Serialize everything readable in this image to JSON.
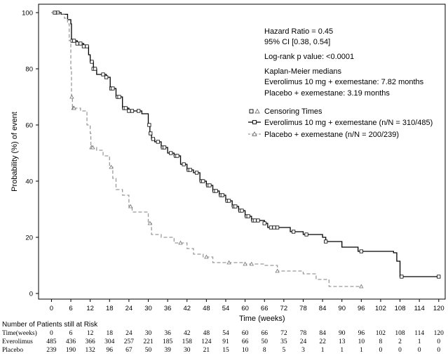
{
  "chart_data": {
    "type": "line",
    "subtype": "kaplan-meier",
    "xlabel": "Time (weeks)",
    "ylabel": "Probability (%) of event",
    "xlim": [
      -4,
      122
    ],
    "ylim": [
      -2,
      103
    ],
    "xticks": [
      0,
      6,
      12,
      18,
      24,
      30,
      36,
      42,
      48,
      54,
      60,
      66,
      72,
      78,
      84,
      90,
      96,
      102,
      108,
      114,
      120
    ],
    "yticks": [
      0,
      20,
      40,
      60,
      80,
      100
    ],
    "grid": false,
    "legend_position": "right-middle",
    "annotations": [
      "Hazard Ratio = 0.45",
      "95% CI [0.38, 0.54]",
      "Log-rank p value: <0.0001",
      "Kaplan-Meier medians",
      "Everolimus 10 mg + exemestane: 7.82 months",
      "Placebo + exemestane: 3.19 months"
    ],
    "legend": {
      "censoring_label": "Censoring Times"
    },
    "series": [
      {
        "name": "Everolimus 10 mg + exemestane (n/N = 310/485)",
        "color": "#000000",
        "style": "solid",
        "marker": "square",
        "points": [
          [
            0,
            100
          ],
          [
            1,
            100
          ],
          [
            3,
            99.4
          ],
          [
            5,
            97.5
          ],
          [
            6,
            96
          ],
          [
            6.2,
            90
          ],
          [
            8,
            89
          ],
          [
            10,
            88
          ],
          [
            11.5,
            85
          ],
          [
            12,
            82.5
          ],
          [
            13,
            80
          ],
          [
            14,
            78
          ],
          [
            17,
            77
          ],
          [
            18.2,
            73
          ],
          [
            20,
            70
          ],
          [
            22,
            66
          ],
          [
            24,
            65
          ],
          [
            28,
            64
          ],
          [
            30,
            60
          ],
          [
            30.5,
            57
          ],
          [
            31,
            55
          ],
          [
            32,
            54
          ],
          [
            34,
            52
          ],
          [
            36,
            50
          ],
          [
            38,
            49
          ],
          [
            40,
            46
          ],
          [
            42,
            44
          ],
          [
            44,
            43
          ],
          [
            46,
            40
          ],
          [
            48,
            38.5
          ],
          [
            50,
            36.5
          ],
          [
            52,
            35
          ],
          [
            54,
            33
          ],
          [
            56,
            31
          ],
          [
            58,
            29.5
          ],
          [
            60,
            27.5
          ],
          [
            62,
            26
          ],
          [
            66,
            25
          ],
          [
            67,
            23.5
          ],
          [
            72,
            23.5
          ],
          [
            74,
            22
          ],
          [
            78,
            21
          ],
          [
            84,
            20
          ],
          [
            85,
            18.5
          ],
          [
            90,
            16.5
          ],
          [
            95,
            15
          ],
          [
            102,
            15
          ],
          [
            106,
            14.5
          ],
          [
            107,
            11.5
          ],
          [
            108,
            6
          ],
          [
            120,
            6
          ]
        ],
        "censored_x": [
          1,
          2,
          6.5,
          7,
          8,
          9,
          10,
          11,
          12.5,
          13,
          13.5,
          16,
          17,
          18.5,
          19,
          20.5,
          21,
          22.5,
          23,
          24,
          25,
          27,
          30.3,
          30.7,
          31.5,
          33,
          34.5,
          35,
          37,
          38.5,
          39,
          41,
          42.5,
          43,
          45,
          46.5,
          47,
          48.5,
          49,
          50.5,
          51,
          52.5,
          53,
          54.5,
          55,
          56.5,
          57,
          58.5,
          59,
          60.5,
          61,
          62.5,
          63,
          64,
          66,
          68,
          69,
          70,
          75,
          79,
          85,
          96,
          108.5,
          120
        ]
      },
      {
        "name": "Placebo + exemestane (n/N = 200/239)",
        "color": "#999999",
        "style": "dashed",
        "marker": "triangle",
        "points": [
          [
            0,
            100
          ],
          [
            2,
            99.5
          ],
          [
            4,
            98
          ],
          [
            5,
            96
          ],
          [
            5.5,
            90
          ],
          [
            6,
            80
          ],
          [
            6.2,
            70
          ],
          [
            6.5,
            66
          ],
          [
            9,
            65
          ],
          [
            11,
            60
          ],
          [
            12,
            57
          ],
          [
            12.2,
            52
          ],
          [
            14,
            51
          ],
          [
            16,
            49
          ],
          [
            17,
            49
          ],
          [
            18,
            45
          ],
          [
            19,
            41
          ],
          [
            20,
            37
          ],
          [
            22,
            35
          ],
          [
            24,
            31
          ],
          [
            25,
            29
          ],
          [
            28,
            29
          ],
          [
            30,
            25
          ],
          [
            31,
            21
          ],
          [
            34,
            20
          ],
          [
            38,
            18
          ],
          [
            42,
            16
          ],
          [
            44,
            14
          ],
          [
            47,
            13
          ],
          [
            50,
            11
          ],
          [
            56,
            11
          ],
          [
            60,
            10.5
          ],
          [
            66,
            10
          ],
          [
            70,
            8
          ],
          [
            75,
            8
          ],
          [
            78,
            7
          ],
          [
            82,
            5
          ],
          [
            84,
            5
          ],
          [
            86,
            2.5
          ],
          [
            96,
            2.5
          ]
        ],
        "censored_x": [
          6.3,
          6.8,
          7,
          12.4,
          12.8,
          18.5,
          24.5,
          30.5,
          40,
          48,
          55,
          60,
          62,
          70,
          96
        ]
      }
    ],
    "risk_table": {
      "title": "Number of Patients still at Risk",
      "rows": [
        {
          "label": "Time(weeks)",
          "values": [
            "0",
            "6",
            "12",
            "18",
            "24",
            "30",
            "36",
            "42",
            "48",
            "54",
            "60",
            "66",
            "72",
            "78",
            "84",
            "90",
            "96",
            "102",
            "108",
            "114",
            "120"
          ]
        },
        {
          "label": "Everolimus",
          "values": [
            "485",
            "436",
            "366",
            "304",
            "257",
            "221",
            "185",
            "158",
            "124",
            "91",
            "66",
            "50",
            "35",
            "24",
            "22",
            "13",
            "10",
            "8",
            "2",
            "1",
            "0"
          ]
        },
        {
          "label": "Placebo",
          "values": [
            "239",
            "190",
            "132",
            "96",
            "67",
            "50",
            "39",
            "30",
            "21",
            "15",
            "10",
            "8",
            "5",
            "3",
            "1",
            "1",
            "1",
            "0",
            "0",
            "0",
            "0"
          ]
        }
      ]
    }
  }
}
